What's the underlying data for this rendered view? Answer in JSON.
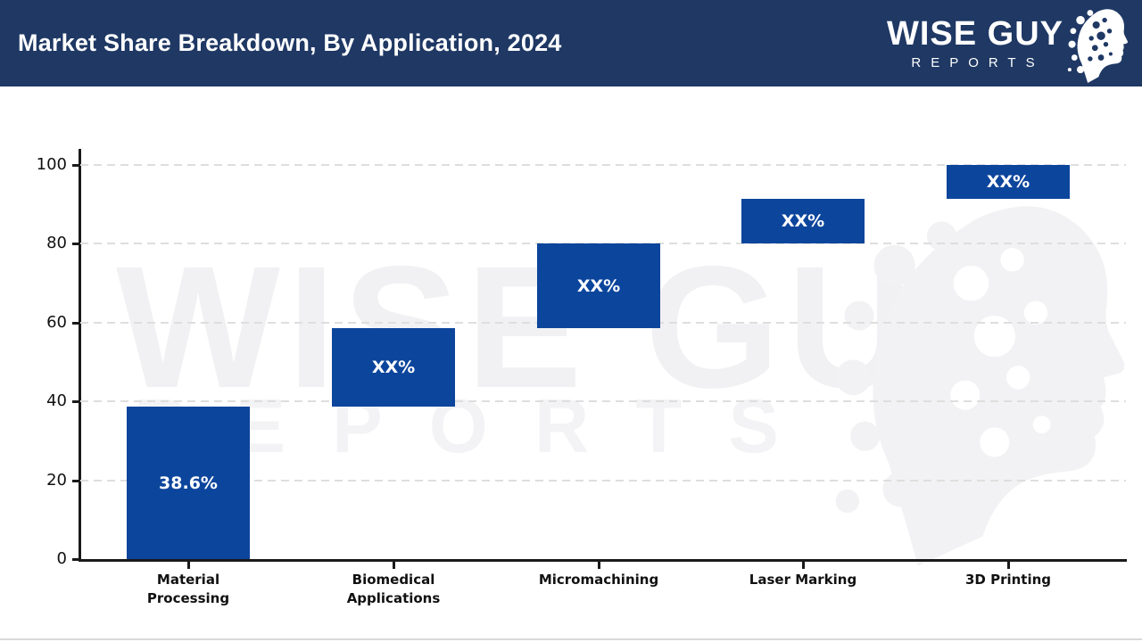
{
  "header": {
    "title": "Market Share Breakdown, By Application, 2024",
    "logo": {
      "line1": "WISE GUY",
      "line2": "REPORTS"
    }
  },
  "watermark": {
    "line1": "WISE GUY",
    "line2": "REPORTS"
  },
  "colors": {
    "header_bg": "#1f3864",
    "bar": "#0c459c",
    "axis": "#1a1a1a",
    "grid": "#dedede",
    "bar_label": "#ffffff"
  },
  "chart_data": {
    "type": "bar",
    "subtype": "waterfall-range",
    "title": "Market Share Breakdown, By Application, 2024",
    "xlabel": "",
    "ylabel": "",
    "ylim": [
      0,
      100
    ],
    "yticks": [
      0,
      20,
      40,
      60,
      80,
      100
    ],
    "grid": "horizontal-dashed",
    "legend": "none",
    "bar_color": "#0c459c",
    "categories": [
      {
        "name": "Material Processing",
        "lines": [
          "Material",
          "Processing"
        ]
      },
      {
        "name": "Biomedical Applications",
        "lines": [
          "Biomedical",
          "Applications"
        ]
      },
      {
        "name": "Micromachining",
        "lines": [
          "Micromachining"
        ]
      },
      {
        "name": "Laser Marking",
        "lines": [
          "Laser Marking"
        ]
      },
      {
        "name": "3D Printing",
        "lines": [
          "3D Printing"
        ]
      }
    ],
    "segments": [
      {
        "category": "Material Processing",
        "start": 0,
        "end": 38.6,
        "label": "38.6%"
      },
      {
        "category": "Biomedical Applications",
        "start": 38.6,
        "end": 58.5,
        "label": "XX%"
      },
      {
        "category": "Micromachining",
        "start": 58.5,
        "end": 80.0,
        "label": "XX%"
      },
      {
        "category": "Laser Marking",
        "start": 80.0,
        "end": 91.3,
        "label": "XX%"
      },
      {
        "category": "3D Printing",
        "start": 91.3,
        "end": 100.0,
        "label": "XX%"
      }
    ]
  }
}
